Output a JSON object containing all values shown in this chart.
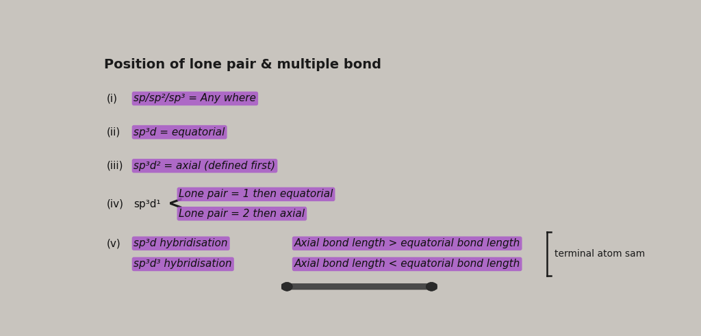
{
  "title": "Position of lone pair & multiple bond",
  "background_color": "#c8c4be",
  "highlight_color": "#a855c8",
  "text_color": "#1a1a1a",
  "item_i_label": "(i)",
  "item_i_text": "sp/sp²/sp³ = Any where",
  "item_ii_label": "(ii)",
  "item_ii_text": "sp³d = equatorial",
  "item_iii_label": "(iii)",
  "item_iii_text": "sp³d² = axial (defined first)",
  "item_iv_label": "(iv)",
  "item_iv_prefix": "sp³d¹",
  "item_iv_upper": "Lone pair = 1 then equatorial",
  "item_iv_lower": "Lone pair = 2 then axial",
  "item_v_label": "(v)",
  "item_v_row1_left": "sp³d hybridisation",
  "item_v_row1_right": "Axial bond length > equatorial bond length",
  "item_v_row2_left": "sp³d³ hybridisation",
  "item_v_row2_right": "Axial bond length < equatorial bond length",
  "item_v_bracket_text": "terminal atom sam",
  "font_size_title": 14,
  "font_size_body": 11
}
